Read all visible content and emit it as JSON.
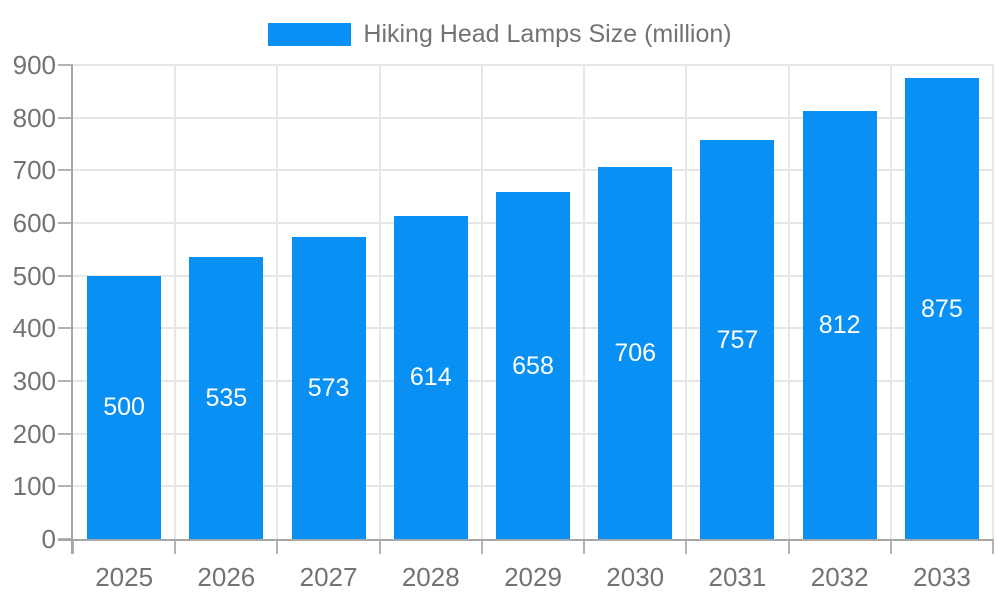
{
  "legend": {
    "label": "Hiking Head Lamps Size (million)"
  },
  "chart_data": {
    "type": "bar",
    "title": "Hiking Head Lamps Size (million)",
    "series_name": "Hiking Head Lamps Size (million)",
    "categories": [
      "2025",
      "2026",
      "2027",
      "2028",
      "2029",
      "2030",
      "2031",
      "2032",
      "2033"
    ],
    "values": [
      500,
      535,
      573,
      614,
      658,
      706,
      757,
      812,
      875
    ],
    "bar_value_labels": [
      "500",
      "535",
      "573",
      "614",
      "658",
      "706",
      "757",
      "812",
      "875"
    ],
    "xlabel": "",
    "ylabel": "",
    "ylim": [
      0,
      900
    ],
    "ytick_step": 100,
    "yticks": [
      0,
      100,
      200,
      300,
      400,
      500,
      600,
      700,
      800,
      900
    ],
    "grid": true,
    "legend_position": "top-center",
    "colors": {
      "bar": "#0990F5",
      "bar_label": "#ffffff",
      "grid": "#e6e6e6",
      "axis_line": "#a6a6a6",
      "tick_mark": "#b3b3b3",
      "axis_text": "#737373",
      "background": "#ffffff"
    }
  }
}
